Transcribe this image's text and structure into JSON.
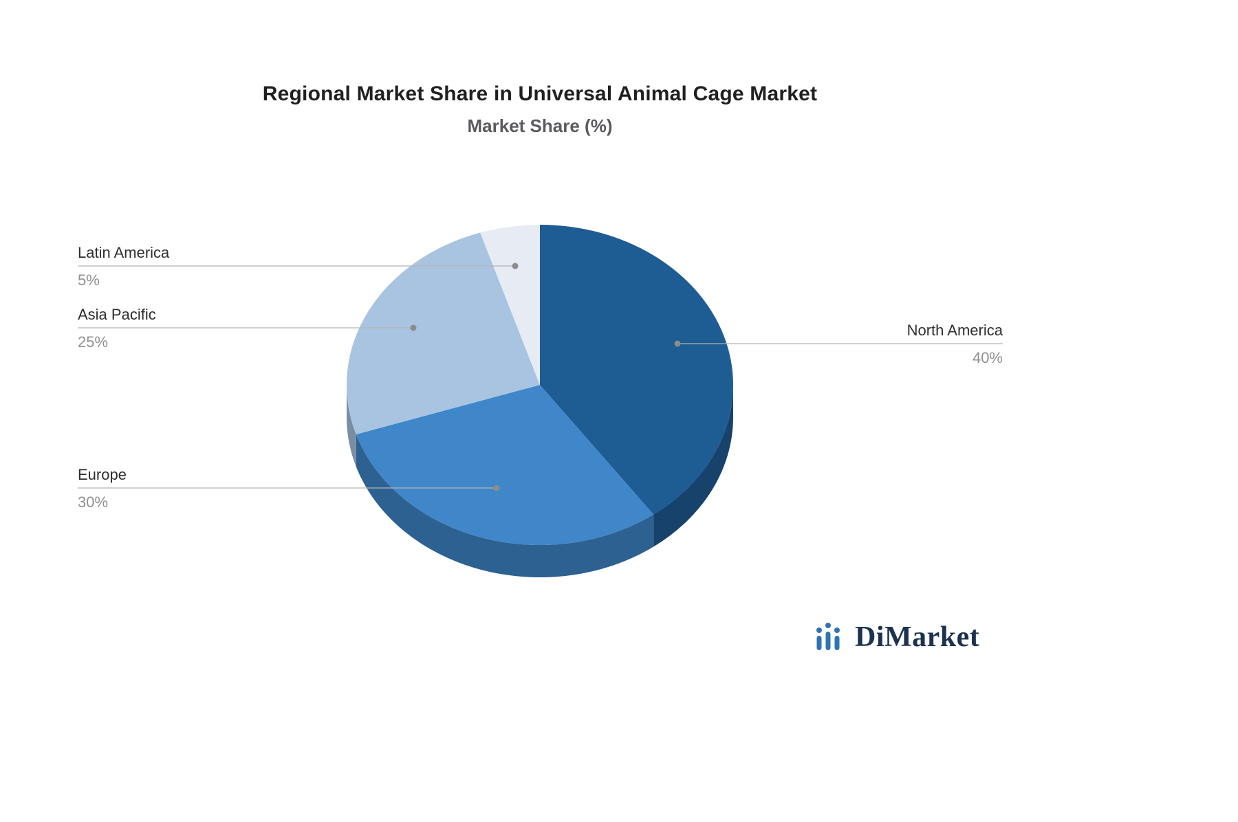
{
  "chart_data": {
    "type": "pie",
    "style": "3d",
    "title": "Regional Market Share in Universal Animal Cage Market",
    "subtitle": "Market Share (%)",
    "unit": "%",
    "labels": "outside-with-leader-lines",
    "legend_position": "none",
    "slices": [
      {
        "label": "North America",
        "value": 40,
        "value_label": "40%",
        "color": "#1e5c94"
      },
      {
        "label": "Europe",
        "value": 30,
        "value_label": "30%",
        "color": "#3f87c9"
      },
      {
        "label": "Asia Pacific",
        "value": 25,
        "value_label": "25%",
        "color": "#a9c4e1"
      },
      {
        "label": "Latin America",
        "value": 5,
        "value_label": "5%",
        "color": "#e7ecf4"
      }
    ]
  },
  "branding": {
    "logo_text": "DiMarket",
    "logo_icon": "bar-chart-dots-icon",
    "logo_text_color": "#1c3350",
    "logo_icon_color": "#2f72b5"
  }
}
